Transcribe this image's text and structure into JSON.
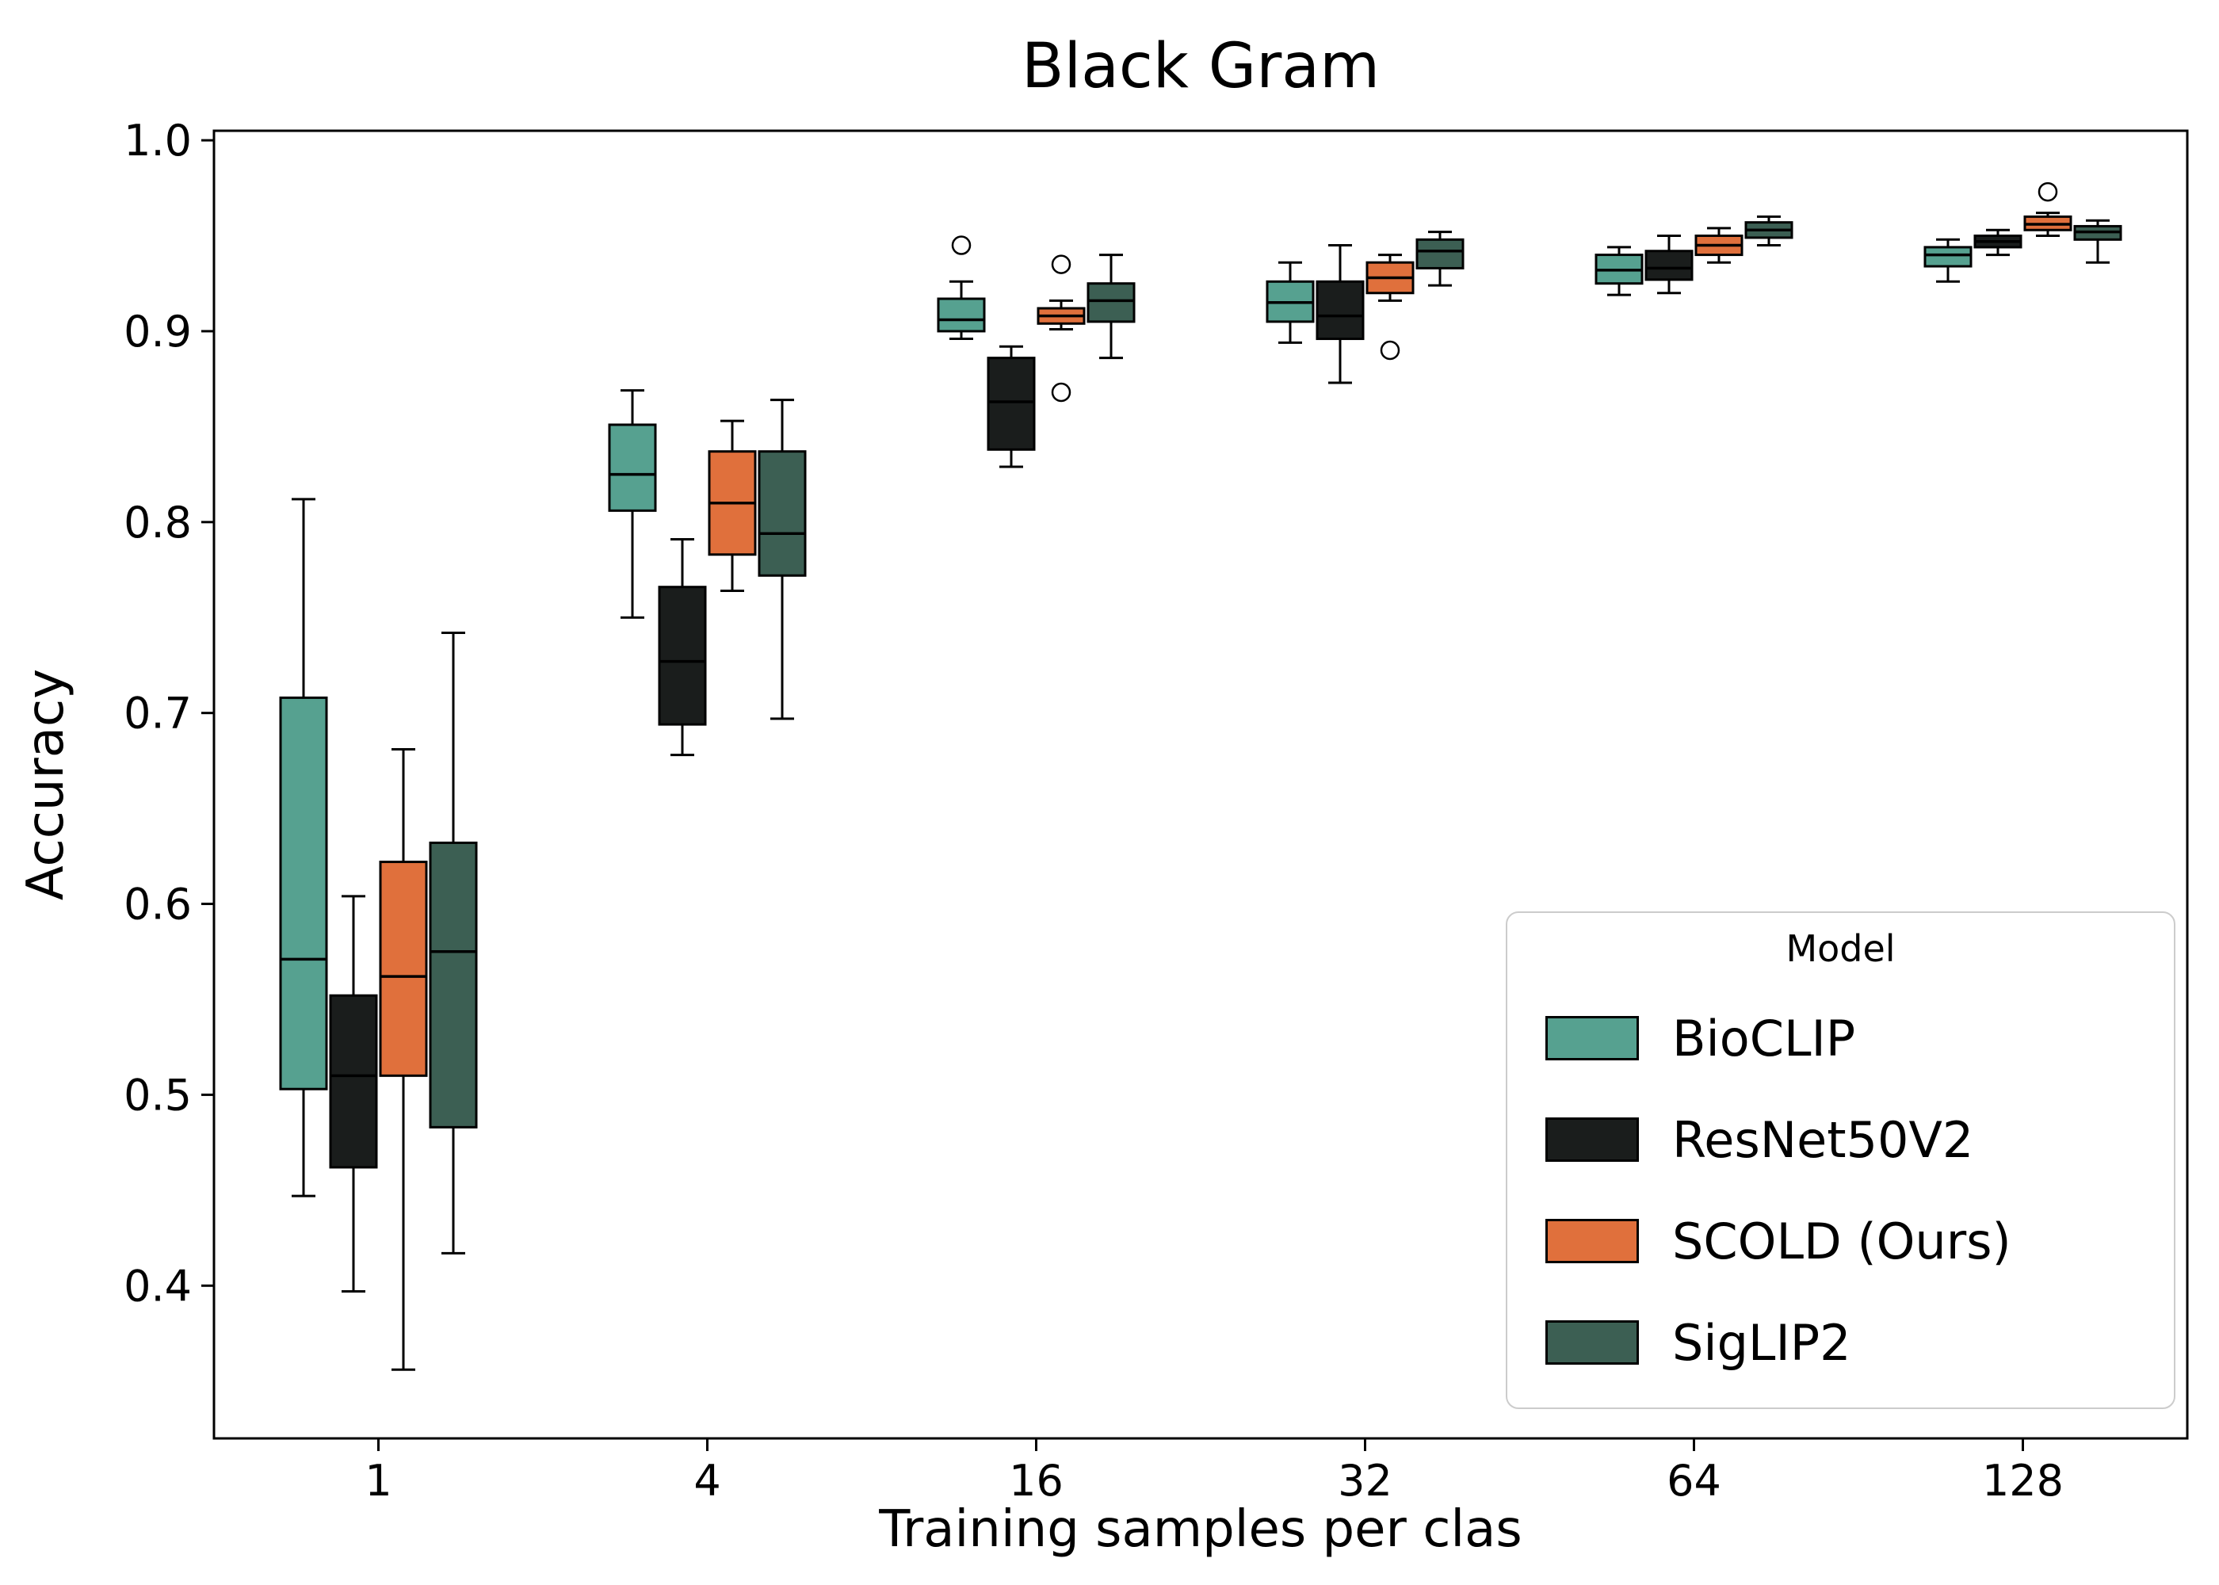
{
  "chart_data": {
    "type": "boxplot",
    "title": "Black Gram",
    "xlabel": "Training samples per clas",
    "ylabel": "Accuracy",
    "legend_title": "Model",
    "legend_position": "lower right",
    "grid": false,
    "categories": [
      "1",
      "4",
      "16",
      "32",
      "64",
      "128"
    ],
    "ylim": [
      0.32,
      1.005
    ],
    "yticks": [
      {
        "v": 0.4,
        "label": "0.4"
      },
      {
        "v": 0.5,
        "label": "0.5"
      },
      {
        "v": 0.6,
        "label": "0.6"
      },
      {
        "v": 0.7,
        "label": "0.7"
      },
      {
        "v": 0.8,
        "label": "0.8"
      },
      {
        "v": 0.9,
        "label": "0.9"
      },
      {
        "v": 1.0,
        "label": "1.0"
      }
    ],
    "series": [
      {
        "name": "BioCLIP",
        "color": "#56a190",
        "boxes": [
          {
            "lo": 0.447,
            "q1": 0.503,
            "med": 0.571,
            "q3": 0.708,
            "hi": 0.812,
            "outliers": []
          },
          {
            "lo": 0.75,
            "q1": 0.806,
            "med": 0.825,
            "q3": 0.851,
            "hi": 0.869,
            "outliers": []
          },
          {
            "lo": 0.896,
            "q1": 0.9,
            "med": 0.906,
            "q3": 0.917,
            "hi": 0.926,
            "outliers": [
              0.945
            ]
          },
          {
            "lo": 0.894,
            "q1": 0.905,
            "med": 0.915,
            "q3": 0.926,
            "hi": 0.936,
            "outliers": []
          },
          {
            "lo": 0.919,
            "q1": 0.925,
            "med": 0.932,
            "q3": 0.94,
            "hi": 0.944,
            "outliers": []
          },
          {
            "lo": 0.926,
            "q1": 0.934,
            "med": 0.94,
            "q3": 0.944,
            "hi": 0.948,
            "outliers": []
          }
        ]
      },
      {
        "name": "ResNet50V2",
        "color": "#1a1d1c",
        "boxes": [
          {
            "lo": 0.397,
            "q1": 0.462,
            "med": 0.51,
            "q3": 0.552,
            "hi": 0.604,
            "outliers": []
          },
          {
            "lo": 0.678,
            "q1": 0.694,
            "med": 0.727,
            "q3": 0.766,
            "hi": 0.791,
            "outliers": []
          },
          {
            "lo": 0.829,
            "q1": 0.838,
            "med": 0.863,
            "q3": 0.886,
            "hi": 0.892,
            "outliers": []
          },
          {
            "lo": 0.873,
            "q1": 0.896,
            "med": 0.908,
            "q3": 0.926,
            "hi": 0.945,
            "outliers": []
          },
          {
            "lo": 0.92,
            "q1": 0.927,
            "med": 0.933,
            "q3": 0.942,
            "hi": 0.95,
            "outliers": []
          },
          {
            "lo": 0.94,
            "q1": 0.944,
            "med": 0.947,
            "q3": 0.95,
            "hi": 0.953,
            "outliers": []
          }
        ]
      },
      {
        "name": "SCOLD (Ours)",
        "color": "#e0703c",
        "boxes": [
          {
            "lo": 0.356,
            "q1": 0.51,
            "med": 0.562,
            "q3": 0.622,
            "hi": 0.681,
            "outliers": []
          },
          {
            "lo": 0.764,
            "q1": 0.783,
            "med": 0.81,
            "q3": 0.837,
            "hi": 0.853,
            "outliers": []
          },
          {
            "lo": 0.901,
            "q1": 0.904,
            "med": 0.908,
            "q3": 0.912,
            "hi": 0.916,
            "outliers": [
              0.935,
              0.868
            ]
          },
          {
            "lo": 0.916,
            "q1": 0.92,
            "med": 0.928,
            "q3": 0.936,
            "hi": 0.94,
            "outliers": [
              0.89
            ]
          },
          {
            "lo": 0.936,
            "q1": 0.94,
            "med": 0.945,
            "q3": 0.95,
            "hi": 0.954,
            "outliers": []
          },
          {
            "lo": 0.95,
            "q1": 0.953,
            "med": 0.956,
            "q3": 0.96,
            "hi": 0.962,
            "outliers": [
              0.973
            ]
          }
        ]
      },
      {
        "name": "SigLIP2",
        "color": "#3c5f53",
        "boxes": [
          {
            "lo": 0.417,
            "q1": 0.483,
            "med": 0.575,
            "q3": 0.632,
            "hi": 0.742,
            "outliers": []
          },
          {
            "lo": 0.697,
            "q1": 0.772,
            "med": 0.794,
            "q3": 0.837,
            "hi": 0.864,
            "outliers": []
          },
          {
            "lo": 0.886,
            "q1": 0.905,
            "med": 0.916,
            "q3": 0.925,
            "hi": 0.94,
            "outliers": []
          },
          {
            "lo": 0.924,
            "q1": 0.933,
            "med": 0.942,
            "q3": 0.948,
            "hi": 0.952,
            "outliers": []
          },
          {
            "lo": 0.945,
            "q1": 0.949,
            "med": 0.953,
            "q3": 0.957,
            "hi": 0.96,
            "outliers": []
          },
          {
            "lo": 0.936,
            "q1": 0.948,
            "med": 0.952,
            "q3": 0.955,
            "hi": 0.958,
            "outliers": []
          }
        ]
      }
    ]
  }
}
